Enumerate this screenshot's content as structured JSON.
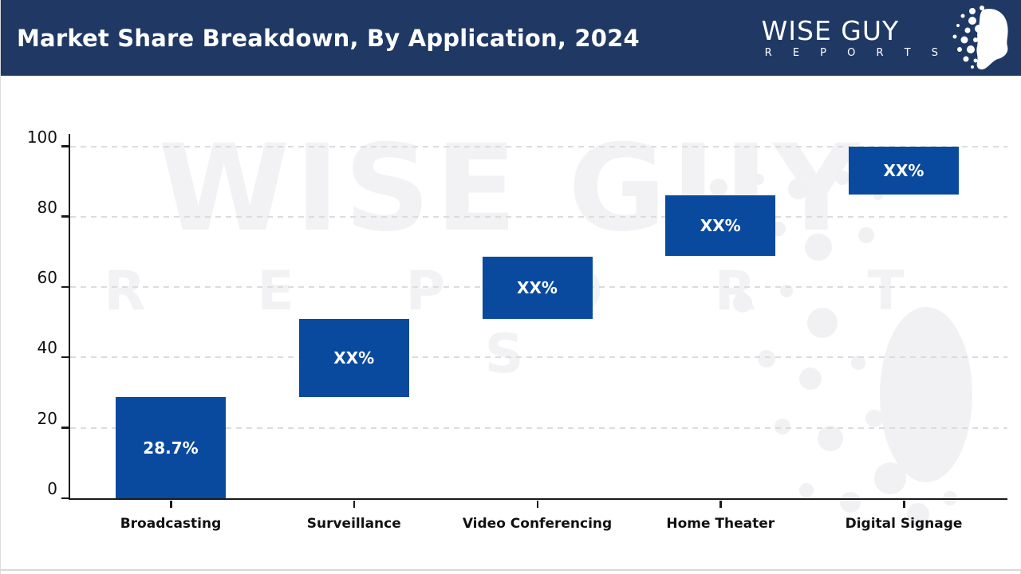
{
  "header": {
    "title": "Market Share Breakdown, By Application, 2024",
    "bg_color": "#1f3864",
    "logo": {
      "wordmark": "WISE GUY",
      "subtext": "R E P O R T S"
    }
  },
  "watermark": {
    "line1": "WISE GUY",
    "line2": "R E P O R T S"
  },
  "chart_data": {
    "type": "bar",
    "subtype": "waterfall",
    "title": "Market Share Breakdown, By Application, 2024",
    "xlabel": "",
    "ylabel": "",
    "categories": [
      "Broadcasting",
      "Surveillance",
      "Video Conferencing",
      "Home Theater",
      "Digital Signage"
    ],
    "segments": [
      {
        "category": "Broadcasting",
        "start": 0,
        "end": 28.7,
        "label": "28.7%"
      },
      {
        "category": "Surveillance",
        "start": 28.7,
        "end": 51.0,
        "label": "XX%"
      },
      {
        "category": "Video Conferencing",
        "start": 51.0,
        "end": 68.6,
        "label": "XX%"
      },
      {
        "category": "Home Theater",
        "start": 68.9,
        "end": 86.2,
        "label": "XX%"
      },
      {
        "category": "Digital Signage",
        "start": 86.3,
        "end": 100.0,
        "label": "XX%"
      }
    ],
    "y_ticks": [
      0,
      20,
      40,
      60,
      80,
      100
    ],
    "ylim": [
      0,
      104
    ],
    "grid": "horizontal-dashed",
    "bar_color": "#0a4a9e",
    "bar_label_color": "#ffffff",
    "axis_color": "#1a1a1a",
    "grid_color": "#dcdcdc",
    "legend": "none"
  }
}
